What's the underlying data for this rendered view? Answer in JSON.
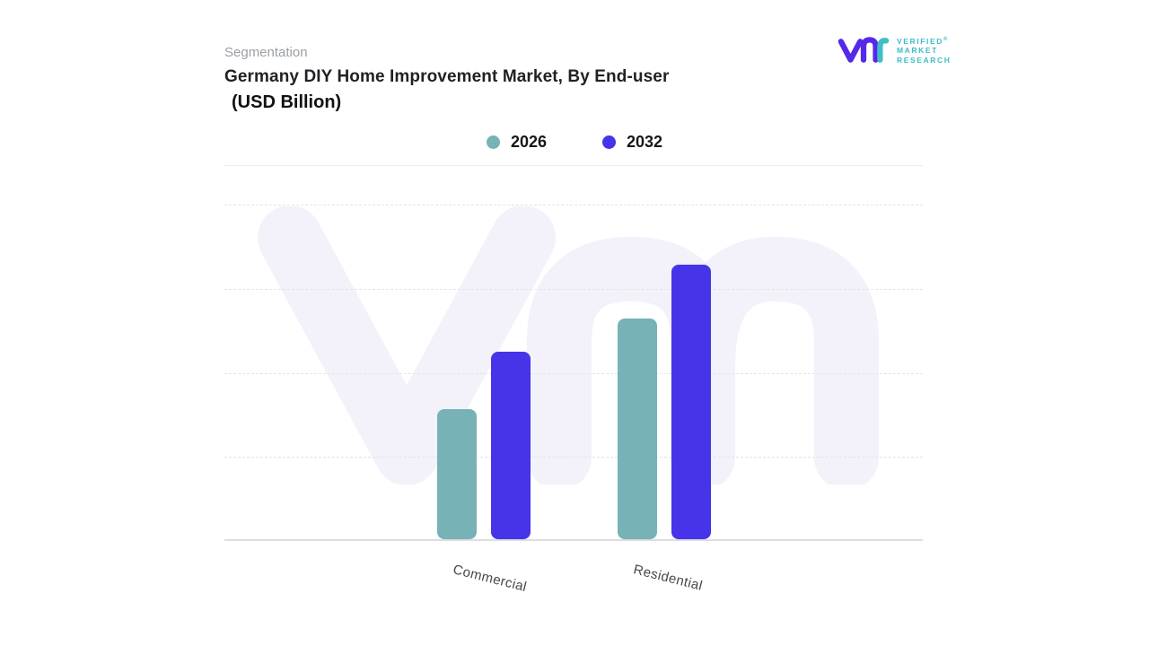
{
  "header": {
    "eyebrow": "Segmentation",
    "title_line1": "Germany DIY Home Improvement Market, By End-user",
    "title_line2": "(USD Billion)"
  },
  "logo": {
    "line1": "VERIFIED",
    "registered_mark": "®",
    "line2": "MARKET",
    "line3": "RESEARCH",
    "mark_color_primary": "#5529e8",
    "mark_color_secondary": "#3fbdc8",
    "text_color": "#3fbdc8"
  },
  "watermark": {
    "text": "vmr",
    "color": "#f3f1fa"
  },
  "chart_data": {
    "type": "bar",
    "title": "Germany DIY Home Improvement Market, By End-user (USD Billion)",
    "categories": [
      "Commercial",
      "Residential"
    ],
    "series": [
      {
        "name": "2026",
        "color": "#76b2b6",
        "values": [
          0.39,
          0.66
        ]
      },
      {
        "name": "2032",
        "color": "#4733e8",
        "values": [
          0.56,
          0.82
        ]
      }
    ],
    "value_scale": "relative_height_0_to_1 (value axis has no visible tick labels)",
    "xlabel": "",
    "ylabel": "",
    "legend_position": "top-center",
    "grid": "horizontal dashed, 4 lines, no axis numbers",
    "baseline": "solid light gray"
  }
}
